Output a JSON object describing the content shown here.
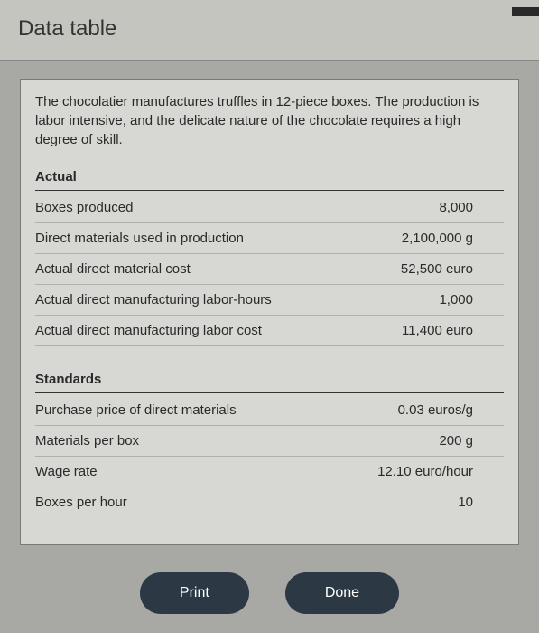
{
  "header": {
    "title": "Data table"
  },
  "intro": "The chocolatier manufactures truffles in 12-piece boxes. The production is labor intensive, and the delicate nature of the chocolate requires a high degree of skill.",
  "sections": {
    "actual": {
      "title": "Actual",
      "rows": [
        {
          "label": "Boxes produced",
          "value": "8,000"
        },
        {
          "label": "Direct materials used in production",
          "value": "2,100,000 g"
        },
        {
          "label": "Actual direct material cost",
          "value": "52,500 euro"
        },
        {
          "label": "Actual direct manufacturing labor-hours",
          "value": "1,000"
        },
        {
          "label": "Actual direct manufacturing labor cost",
          "value": "11,400 euro"
        }
      ]
    },
    "standards": {
      "title": "Standards",
      "rows": [
        {
          "label": "Purchase price of direct materials",
          "value": "0.03 euros/g"
        },
        {
          "label": "Materials per box",
          "value": "200 g"
        },
        {
          "label": "Wage rate",
          "value": "12.10 euro/hour"
        },
        {
          "label": "Boxes per hour",
          "value": "10"
        }
      ]
    }
  },
  "buttons": {
    "print": "Print",
    "done": "Done"
  },
  "colors": {
    "page_bg": "#a8a8a4",
    "header_bg": "#c5c5c0",
    "panel_bg": "#d7d7d3",
    "panel_border": "#7a7a76",
    "section_rule": "#333333",
    "row_rule": "#b0b0ac",
    "text": "#2a2a2a",
    "button_bg": "#2c3844",
    "button_text": "#ffffff"
  }
}
